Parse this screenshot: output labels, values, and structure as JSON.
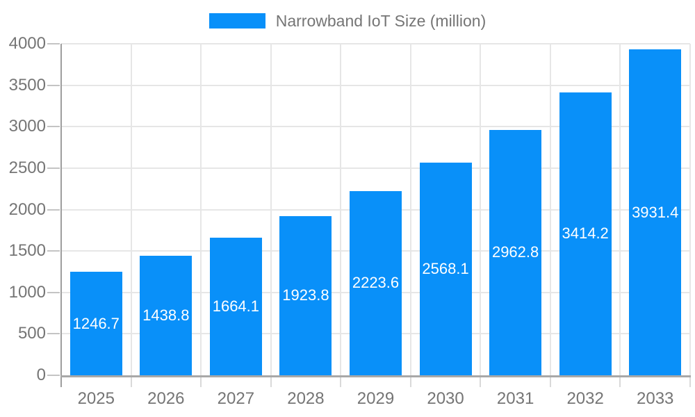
{
  "chart_data": {
    "type": "bar",
    "title": "Narrowband IoT Size (million)",
    "categories": [
      "2025",
      "2026",
      "2027",
      "2028",
      "2029",
      "2030",
      "2031",
      "2032",
      "2033"
    ],
    "series": [
      {
        "name": "Narrowband IoT Size (million)",
        "values": [
          1246.7,
          1438.8,
          1664.1,
          1923.8,
          2223.6,
          2568.1,
          2962.8,
          3414.2,
          3931.4
        ]
      }
    ],
    "data_labels": [
      "1246.7",
      "1438.8",
      "1664.1",
      "1923.8",
      "2223.6",
      "2568.1",
      "2962.8",
      "3414.2",
      "3931.4"
    ],
    "xlabel": "",
    "ylabel": "",
    "ylim": [
      0,
      4000
    ],
    "yticks": [
      0,
      500,
      1000,
      1500,
      2000,
      2500,
      3000,
      3500,
      4000
    ],
    "grid": true,
    "legend_position": "top",
    "colors": {
      "bar": "#0990f9",
      "bar_label": "#ffffff",
      "axis_text": "#757575",
      "gridline": "#e6e6e6",
      "y_axis_line": "#9e9e9e",
      "baseline": "#a8a8a8",
      "tick": "#d9d9d9",
      "y_tick": "#c4c4c4",
      "background": "#ffffff"
    }
  }
}
